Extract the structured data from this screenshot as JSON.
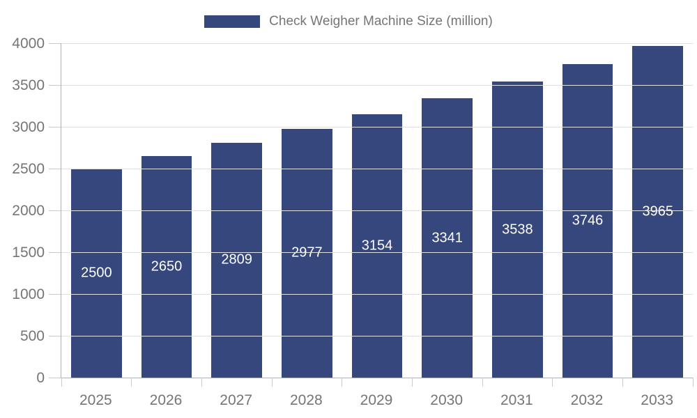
{
  "chart_data": {
    "type": "bar",
    "title": "",
    "legend_label": "Check Weigher Machine Size (million)",
    "legend_position": "top-center",
    "categories": [
      "2025",
      "2026",
      "2027",
      "2028",
      "2029",
      "2030",
      "2031",
      "2032",
      "2033"
    ],
    "series": [
      {
        "name": "Check Weigher Machine Size (million)",
        "values": [
          2500,
          2650,
          2809,
          2977,
          3154,
          3341,
          3538,
          3746,
          3965
        ]
      }
    ],
    "xlabel": "",
    "ylabel": "",
    "ylim": [
      0,
      4000
    ],
    "yticks": [
      0,
      500,
      1000,
      1500,
      2000,
      2500,
      3000,
      3500,
      4000
    ],
    "grid": true,
    "value_labels_inside_bars": true,
    "colors": {
      "bar": "#35477d",
      "bar_value_label": "#ffffff",
      "axis_line": "#b0b0b8",
      "tick_mark": "#c9c9ce",
      "grid_line": "#e0e0e0",
      "tick_label_text": "#757575",
      "legend_text": "#757575",
      "background": "#ffffff"
    }
  }
}
